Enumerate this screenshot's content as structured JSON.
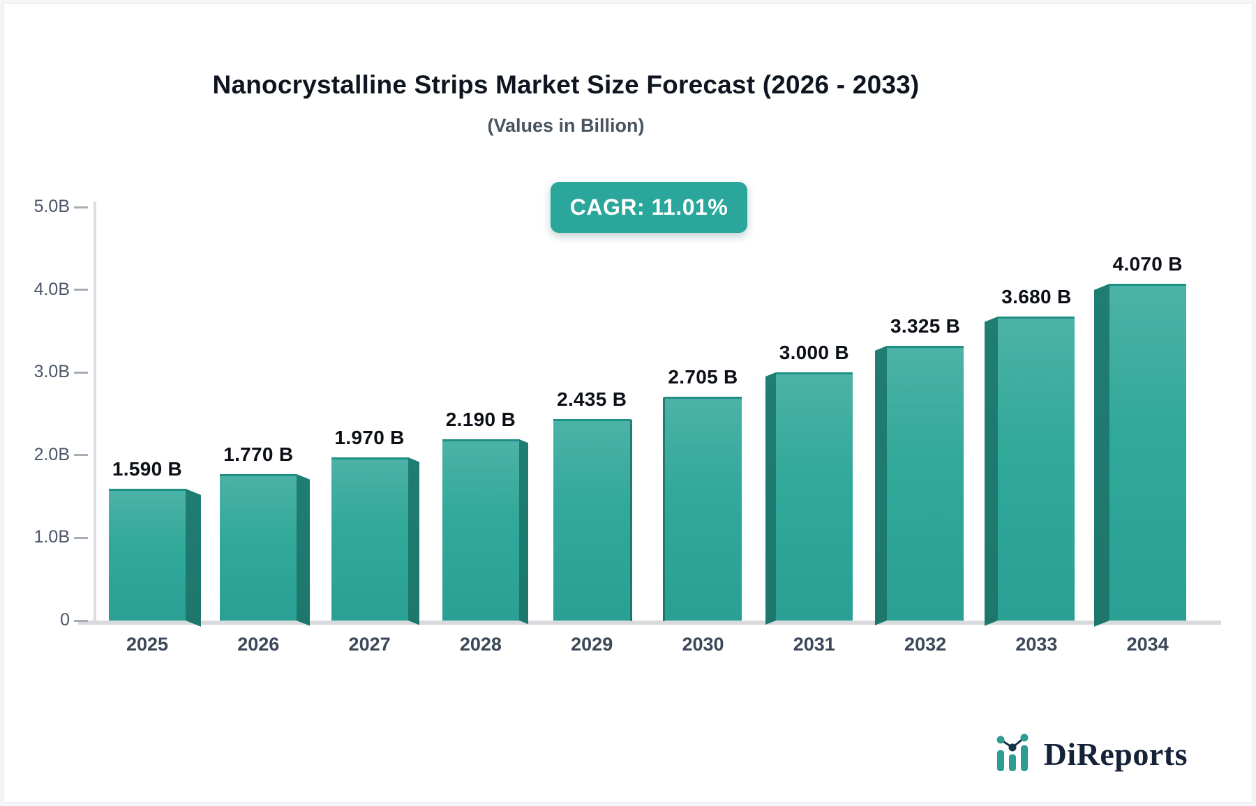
{
  "header": {
    "title": "Nanocrystalline Strips Market Size Forecast (2026 - 2033)",
    "subtitle": "(Values in Billion)",
    "badge_label": "CAGR: 11.01%"
  },
  "chart_data": {
    "type": "bar",
    "title": "Nanocrystalline Strips Market Size Forecast (2026 - 2033)",
    "subtitle": "(Values in Billion)",
    "annotation": "CAGR: 11.01%",
    "unit": "Billion",
    "xlabel": "",
    "ylabel": "",
    "categories": [
      "2025",
      "2026",
      "2027",
      "2028",
      "2029",
      "2030",
      "2031",
      "2032",
      "2033",
      "2034"
    ],
    "values": [
      1.59,
      1.77,
      1.97,
      2.19,
      2.435,
      2.705,
      3.0,
      3.325,
      3.68,
      4.07
    ],
    "value_labels": [
      "1.590 B",
      "1.770 B",
      "1.970 B",
      "2.190 B",
      "2.435 B",
      "2.705 B",
      "3.000 B",
      "3.325 B",
      "3.680 B",
      "4.070 B"
    ],
    "y_ticks": [
      {
        "label": "5.0B",
        "value": 5.0
      },
      {
        "label": "4.0B",
        "value": 4.0
      },
      {
        "label": "3.0B",
        "value": 3.0
      },
      {
        "label": "2.0B",
        "value": 2.0
      },
      {
        "label": "1.0B",
        "value": 1.0
      },
      {
        "label": "0",
        "value": 0
      }
    ],
    "ylim": [
      0,
      5
    ],
    "grid": "off",
    "legend": "none",
    "bar_style": "3d-perspective",
    "colors": {
      "bar_front_top": "#4cb2a7",
      "bar_front_mid": "#30a89a",
      "bar_front_bottom": "#29a093",
      "bar_top_edge": "#1e9084",
      "bar_side": "#1f7d73",
      "badge_bg": "#2aa69b",
      "axis_line": "#d8dadd",
      "tick_text": "#4a5568",
      "year_text": "#3c4859",
      "value_text": "#0c1016"
    }
  },
  "branding": {
    "logo_text": "DiReports",
    "logo_icon": "bar-line-chart-icon",
    "logo_icon_color": "#2e9c93",
    "logo_text_color": "#152238"
  }
}
